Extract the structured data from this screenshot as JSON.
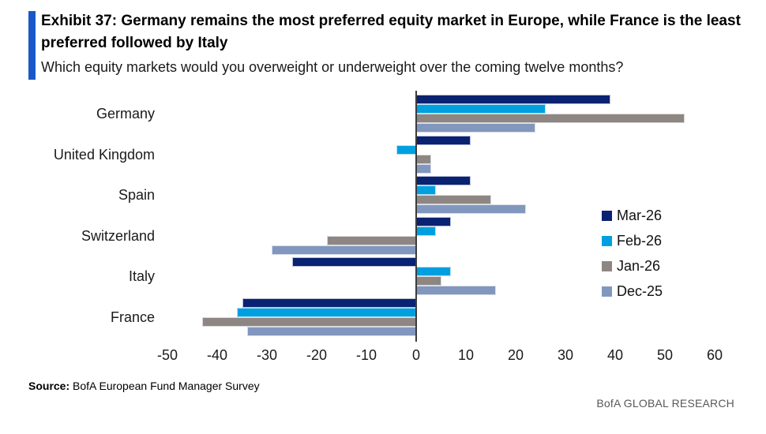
{
  "header": {
    "title": "Exhibit 37: Germany remains the most preferred equity market in Europe, while France is the least preferred followed by Italy",
    "subtitle": "Which equity markets would you overweight or underweight over the coming twelve months?",
    "accent_color": "#1a58c8"
  },
  "chart_data": {
    "type": "bar",
    "orientation": "horizontal",
    "title": "",
    "xlabel": "",
    "ylabel": "",
    "categories": [
      "Germany",
      "United Kingdom",
      "Spain",
      "Switzerland",
      "Italy",
      "France"
    ],
    "series": [
      {
        "name": "Mar-26",
        "color": "#0a2272",
        "values": [
          39,
          11,
          11,
          7,
          -25,
          -35
        ]
      },
      {
        "name": "Feb-26",
        "color": "#00a0e0",
        "values": [
          26,
          -4,
          4,
          4,
          7,
          -36
        ]
      },
      {
        "name": "Jan-26",
        "color": "#8d8682",
        "values": [
          54,
          3,
          15,
          -18,
          5,
          -43
        ]
      },
      {
        "name": "Dec-25",
        "color": "#8297bd",
        "values": [
          24,
          3,
          22,
          -29,
          16,
          -34
        ]
      }
    ],
    "x_ticks": [
      -50,
      -40,
      -30,
      -20,
      -10,
      0,
      10,
      20,
      30,
      40,
      50,
      60
    ],
    "xlim": [
      -50,
      60
    ],
    "grid": false,
    "legend_position": "right",
    "axis_color": "#3c3c3c"
  },
  "footer": {
    "source_label": "Source:",
    "source_text": " BofA European Fund Manager Survey",
    "brand": "BofA GLOBAL RESEARCH"
  }
}
